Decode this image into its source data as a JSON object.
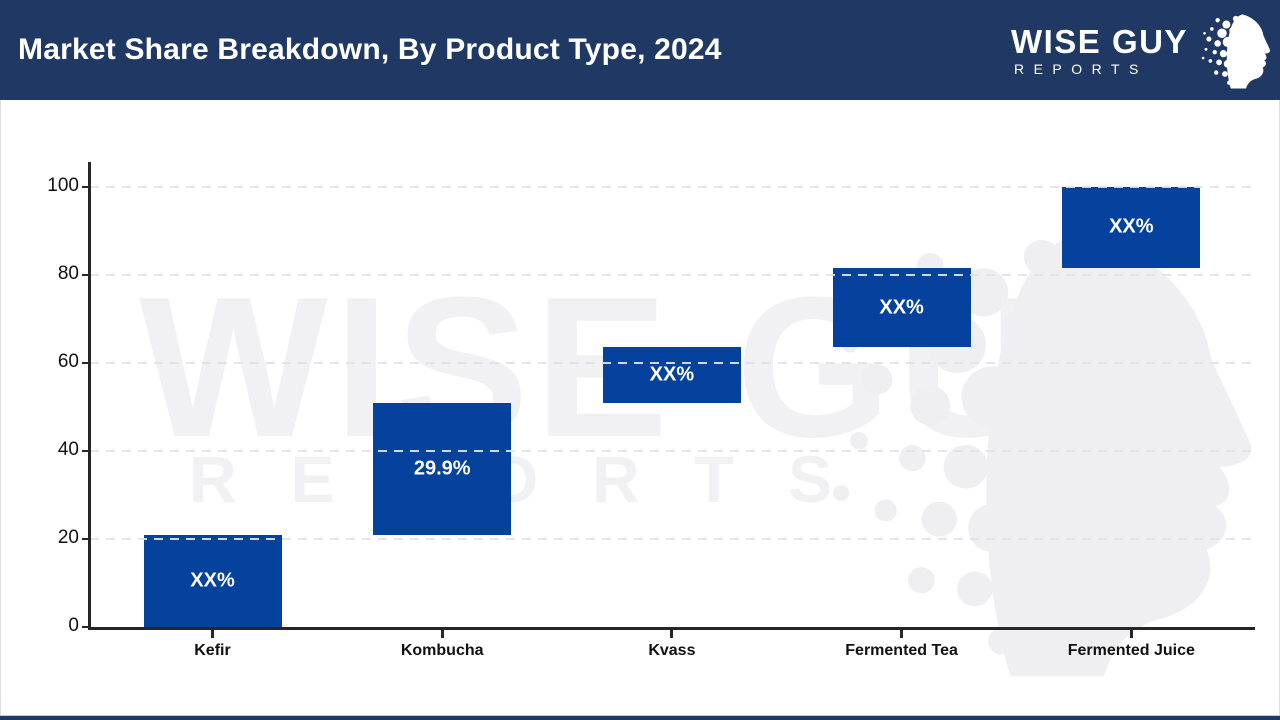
{
  "page": {
    "bg": "#ffffff"
  },
  "header": {
    "bg": "#203864",
    "title": "Market Share Breakdown, By Product Type, 2024",
    "logo": {
      "line1": "WISE GUY",
      "line2": "REPORTS"
    }
  },
  "watermark": {
    "line1": "WISE GUY",
    "line2": "REPORTS"
  },
  "chart_data": {
    "type": "bar",
    "subtype": "waterfall-floating-bars",
    "title": "Market Share Breakdown, By Product Type, 2024",
    "categories": [
      "Kefir",
      "Kombucha",
      "Kvass",
      "Fermented Tea",
      "Fermented Juice"
    ],
    "bars": [
      {
        "category": "Kefir",
        "start": 0,
        "end": 21,
        "label": "XX%"
      },
      {
        "category": "Kombucha",
        "start": 21,
        "end": 50.9,
        "label": "29.9%"
      },
      {
        "category": "Kvass",
        "start": 50.9,
        "end": 63.6,
        "label": "XX%"
      },
      {
        "category": "Fermented Tea",
        "start": 63.6,
        "end": 81.6,
        "label": "XX%"
      },
      {
        "category": "Fermented Juice",
        "start": 81.6,
        "end": 100,
        "label": "XX%"
      }
    ],
    "yticks": [
      0,
      20,
      40,
      60,
      80,
      100
    ],
    "ylim": [
      0,
      106
    ],
    "grid": true,
    "grid_style": "dashed",
    "bar_color": "#05429d",
    "bar_label_color": "#ffffff",
    "axis_color": "#262626",
    "tick_label_color": "#111111"
  },
  "footer": {
    "bg": "#203864"
  }
}
